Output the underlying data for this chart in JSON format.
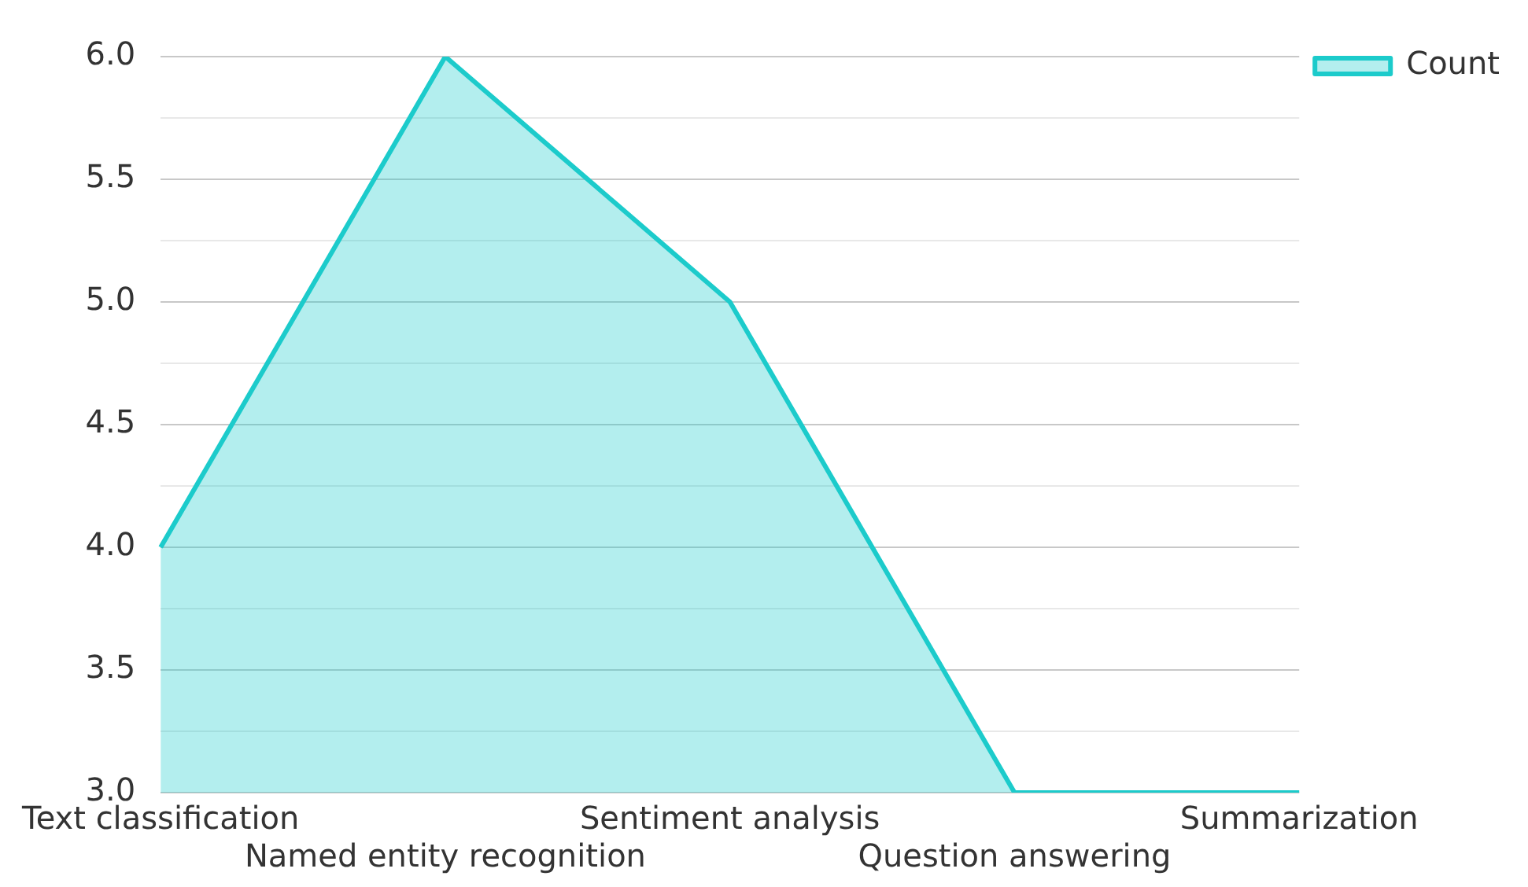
{
  "chart_data": {
    "type": "area",
    "categories": [
      "Text classification",
      "Named entity recognition",
      "Sentiment analysis",
      "Question answering",
      "Summarization"
    ],
    "series": [
      {
        "name": "Count",
        "color": "#1ccbcb",
        "values": [
          4,
          6,
          5,
          3,
          3
        ]
      }
    ],
    "ylim": [
      3,
      6
    ],
    "yticks": [
      {
        "value": 3,
        "label": "3.0"
      },
      {
        "value": 3.25,
        "label": null
      },
      3.5,
      {
        "value": 3.75,
        "label": null
      },
      {
        "value": 4,
        "label": "4.0"
      },
      {
        "value": 4.25,
        "label": null
      },
      4.5,
      {
        "value": 4.75,
        "label": null
      },
      {
        "value": 5,
        "label": "5.0"
      },
      {
        "value": 5.25,
        "label": null
      },
      5.5,
      {
        "value": 5.75,
        "label": null
      },
      {
        "value": 6,
        "label": "6.0"
      }
    ],
    "grid": "y",
    "legend": "top right"
  }
}
